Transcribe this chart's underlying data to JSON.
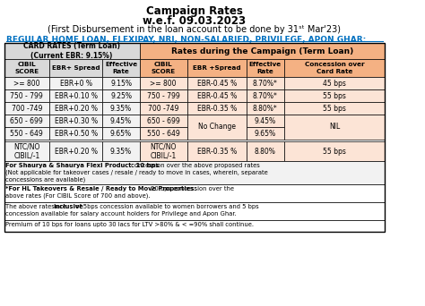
{
  "title_line1": "Campaign Rates",
  "title_line2": "w.e.f. 09.03.2023",
  "title_line3": "(First Disbursement in the loan account to be done by 31",
  "title_line3b": "st",
  "title_line3c": " Mar'23)",
  "subtitle": "REGULAR HOME LOAN, FLEXIPAY, NRI, NON-SALARIED, PRIVILEGE, APON GHAR:",
  "card_header": "CARD RATES (Term Loan)\n(Current EBR: 9.15%)",
  "campaign_header": "Rates during the Campaign (Term Loan)",
  "rows_left": [
    [
      ">= 800",
      "EBR+0 %",
      "9.15%"
    ],
    [
      "750 - 799",
      "EBR+0.10 %",
      "9.25%"
    ],
    [
      "700 -749",
      "EBR+0.20 %",
      "9.35%"
    ],
    [
      "650 - 699",
      "EBR+0.30 %",
      "9.45%"
    ],
    [
      "550 - 649",
      "EBR+0.50 %",
      "9.65%"
    ],
    [
      "NTC/NO\nCIBIL/-1",
      "EBR+0.20 %",
      "9.35%"
    ]
  ],
  "rows_right": [
    [
      ">= 800",
      "EBR-0.45 %",
      "8.70%*",
      "45 bps"
    ],
    [
      "750 - 799",
      "EBR-0.45 %",
      "8.70%*",
      "55 bps"
    ],
    [
      "700 -749",
      "EBR-0.35 %",
      "8.80%*",
      "55 bps"
    ],
    [
      "650 - 699",
      "No Change",
      "9.45%",
      "NIL"
    ],
    [
      "550 - 649",
      "No Change",
      "9.65%",
      "NIL"
    ],
    [
      "NTC/NO\nCIBIL/-1",
      "EBR-0.35 %",
      "8.80%",
      "55 bps"
    ]
  ],
  "no_change_rows": [
    3,
    4
  ],
  "color_left_header": "#d9d9d9",
  "color_right_header": "#f4b183",
  "color_left_rows": "#f2f2f2",
  "color_right_rows": "#fce4d6",
  "color_subtitle": "#0070c0",
  "bg_color": "#ffffff",
  "fn_colors": [
    "#f2f2f2",
    "#ffffff",
    "#ffffff",
    "#ffffff"
  ]
}
